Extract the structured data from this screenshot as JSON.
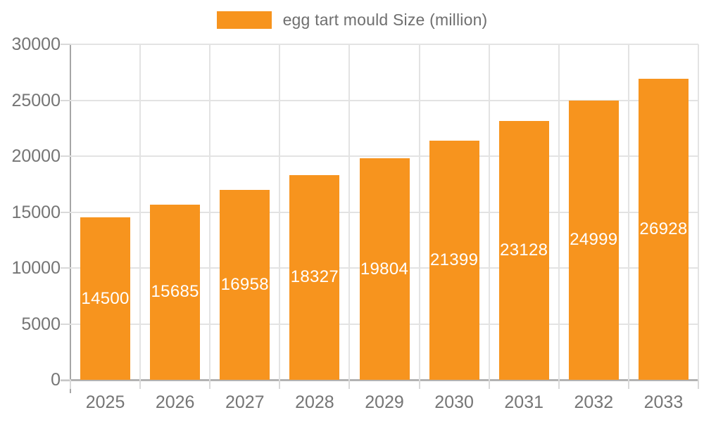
{
  "chart_data": {
    "type": "bar",
    "title": "egg tart mould Size (million)",
    "categories": [
      "2025",
      "2026",
      "2027",
      "2028",
      "2029",
      "2030",
      "2031",
      "2032",
      "2033"
    ],
    "values": [
      14500,
      15685,
      16958,
      18327,
      19804,
      21399,
      23128,
      24999,
      26928
    ],
    "series": [
      {
        "name": "egg tart mould Size (million)",
        "values": [
          14500,
          15685,
          16958,
          18327,
          19804,
          21399,
          23128,
          24999,
          26928
        ]
      }
    ],
    "xlabel": "",
    "ylabel": "",
    "ylim": [
      0,
      30000
    ],
    "yticks": [
      0,
      5000,
      10000,
      15000,
      20000,
      25000,
      30000
    ],
    "grid": true,
    "legend_position": "top-center",
    "bar_label_position": "inside-center",
    "colors": {
      "bar": "#F7941E",
      "bar_label": "#FFFFFF",
      "axis_text": "#757575",
      "gridline": "#E3E3E3",
      "axis_line": "#A6A6A6",
      "background": "#FFFFFF"
    }
  },
  "legend": {
    "label": "egg tart mould Size (million)",
    "swatch_color": "#F7941E"
  }
}
